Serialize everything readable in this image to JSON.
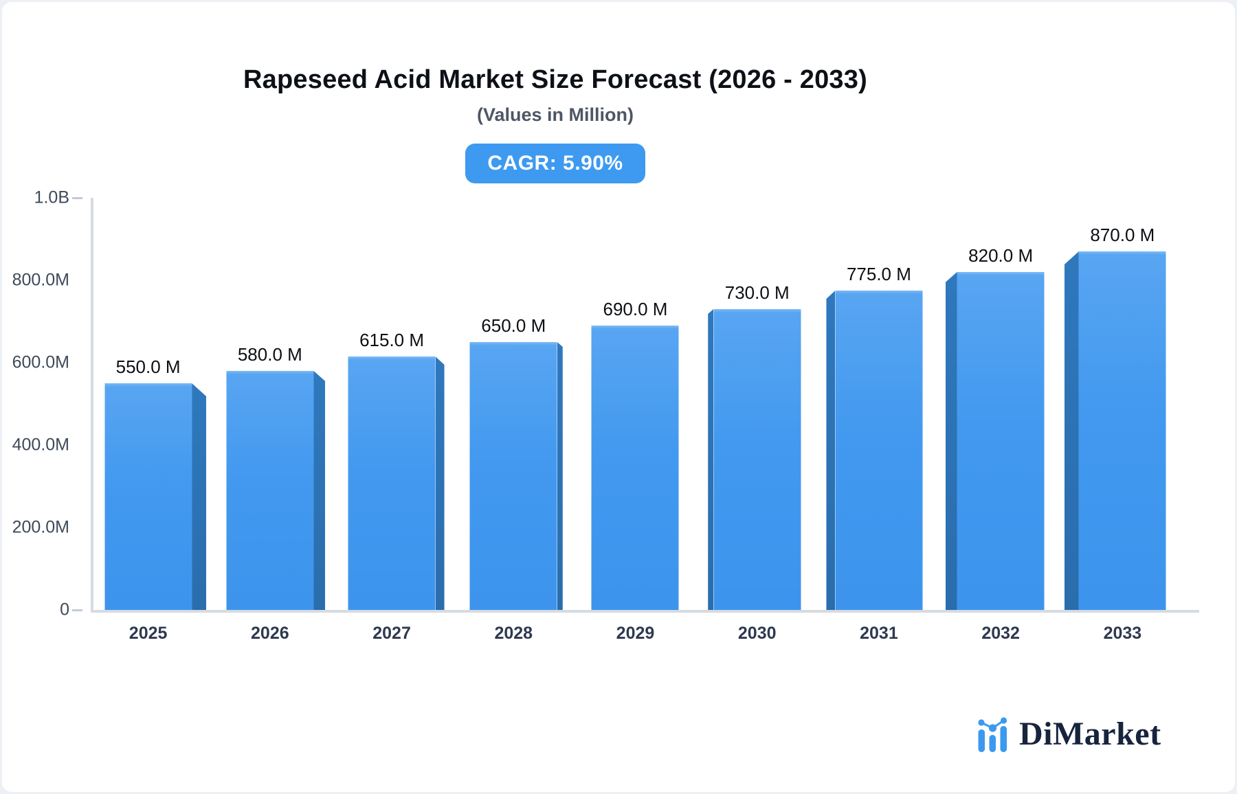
{
  "header": {
    "title": "Rapeseed Acid Market Size Forecast (2026 - 2033)",
    "subtitle": "(Values in Million)"
  },
  "badge": {
    "label": "CAGR: 5.90%",
    "cagr": "5.90%",
    "background_color": "#3D9AF0",
    "text_color": "#FFFFFF"
  },
  "chart_data": {
    "type": "bar",
    "title": "Rapeseed Acid Market Size Forecast (2026 - 2033)",
    "subtitle": "(Values in Million)",
    "categories": [
      "2025",
      "2026",
      "2027",
      "2028",
      "2029",
      "2030",
      "2031",
      "2032",
      "2033"
    ],
    "values": [
      550,
      580,
      615,
      650,
      690,
      730,
      775,
      820,
      870
    ],
    "value_unit": "Million",
    "value_labels": [
      "550.0 M",
      "580.0 M",
      "615.0 M",
      "650.0 M",
      "690.0 M",
      "730.0 M",
      "775.0 M",
      "820.0 M",
      "870.0 M"
    ],
    "xlabel": "",
    "ylabel": "",
    "ylim": [
      0,
      1000
    ],
    "y_ticks": [
      {
        "label": "1.0B",
        "value": 1000,
        "tick_mark": true
      },
      {
        "label": "800.0M",
        "value": 800,
        "tick_mark": false
      },
      {
        "label": "600.0M",
        "value": 600,
        "tick_mark": false
      },
      {
        "label": "400.0M",
        "value": 400,
        "tick_mark": false
      },
      {
        "label": "200.0M",
        "value": 200,
        "tick_mark": false
      },
      {
        "label": "0",
        "value": 0,
        "tick_mark": true
      }
    ],
    "grid": false,
    "legend": false,
    "bar_color": "#4299EF",
    "bar_side_color": "#2D73B6",
    "axis_color": "#D6DAE2",
    "style_3d": "perspective bevel facing center"
  },
  "footer": {
    "brand": "DiMarket",
    "logo_icon": "bar-chart-logo-icon",
    "brand_blue": "#3B99F0",
    "brand_navy": "#17243D"
  }
}
